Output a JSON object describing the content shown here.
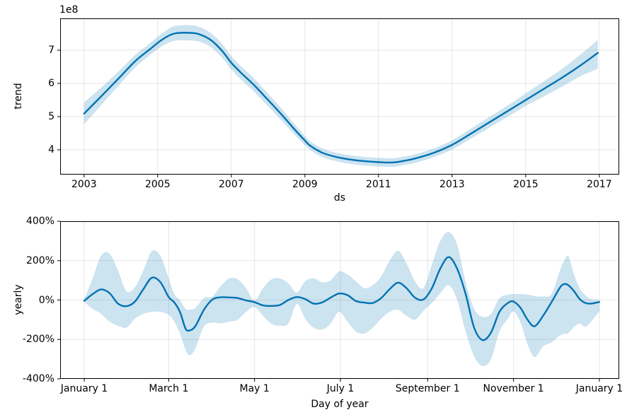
{
  "figure": {
    "background": "#ffffff",
    "line_color": "#0072b2",
    "band_color": "#0072b2",
    "band_alpha": 0.2,
    "grid_color": "#808080",
    "grid_alpha": 0.2,
    "spine_color": "#000000",
    "text_color": "#000000"
  },
  "chart_data": [
    {
      "type": "line",
      "title": "",
      "xlabel": "ds",
      "ylabel": "trend",
      "y_offset_label": "1e8",
      "grid": true,
      "legend": "none",
      "xlim": [
        2002.35,
        2017.54
      ],
      "ylim": [
        3.255,
        7.957
      ],
      "y_unit": "1e8",
      "x_ticks": [
        {
          "v": 2003,
          "label": "2003"
        },
        {
          "v": 2005,
          "label": "2005"
        },
        {
          "v": 2007,
          "label": "2007"
        },
        {
          "v": 2009,
          "label": "2009"
        },
        {
          "v": 2011,
          "label": "2011"
        },
        {
          "v": 2013,
          "label": "2013"
        },
        {
          "v": 2015,
          "label": "2015"
        },
        {
          "v": 2017,
          "label": "2017"
        }
      ],
      "y_ticks": [
        {
          "v": 4,
          "label": "4"
        },
        {
          "v": 5,
          "label": "5"
        },
        {
          "v": 6,
          "label": "6"
        },
        {
          "v": 7,
          "label": "7"
        }
      ],
      "series": [
        {
          "name": "trend",
          "x": [
            2003.0,
            2003.5,
            2004.0,
            2004.4,
            2004.78,
            2005.1,
            2005.45,
            2005.9,
            2006.15,
            2006.45,
            2006.75,
            2007.0,
            2007.3,
            2007.6,
            2008.0,
            2008.4,
            2008.7,
            2009.0,
            2009.15,
            2009.5,
            2010.0,
            2010.5,
            2011.0,
            2011.4,
            2011.75,
            2012.0,
            2012.5,
            2013.0,
            2013.5,
            2014.0,
            2014.5,
            2015.0,
            2015.5,
            2016.0,
            2016.5,
            2016.96
          ],
          "y": [
            5.09,
            5.65,
            6.22,
            6.68,
            7.02,
            7.3,
            7.5,
            7.52,
            7.47,
            7.3,
            6.98,
            6.62,
            6.28,
            5.97,
            5.5,
            5.02,
            4.64,
            4.28,
            4.12,
            3.9,
            3.75,
            3.67,
            3.63,
            3.62,
            3.68,
            3.74,
            3.91,
            4.15,
            4.48,
            4.82,
            5.16,
            5.5,
            5.84,
            6.18,
            6.55,
            6.92
          ],
          "lower": [
            4.77,
            5.39,
            6.01,
            6.49,
            6.84,
            7.11,
            7.28,
            7.29,
            7.25,
            7.09,
            6.77,
            6.42,
            6.08,
            5.77,
            5.31,
            4.84,
            4.48,
            4.14,
            3.99,
            3.77,
            3.62,
            3.54,
            3.5,
            3.49,
            3.55,
            3.61,
            3.78,
            4.01,
            4.33,
            4.66,
            4.99,
            5.32,
            5.61,
            5.91,
            6.22,
            6.44
          ],
          "upper": [
            5.43,
            5.91,
            6.43,
            6.87,
            7.2,
            7.49,
            7.72,
            7.75,
            7.69,
            7.51,
            7.19,
            6.82,
            6.48,
            6.17,
            5.69,
            5.2,
            4.8,
            4.42,
            4.25,
            4.03,
            3.88,
            3.8,
            3.76,
            3.75,
            3.81,
            3.87,
            4.04,
            4.29,
            4.63,
            4.98,
            5.33,
            5.7,
            6.07,
            6.45,
            6.88,
            7.31
          ]
        }
      ]
    },
    {
      "type": "line",
      "title": "",
      "xlabel": "Day of year",
      "ylabel": "yearly",
      "grid": true,
      "legend": "none",
      "xlim": [
        -17.1,
        380.1
      ],
      "ylim": [
        -400,
        400
      ],
      "y_unit": "%",
      "x_ticks": [
        {
          "v": 0,
          "label": "January 1"
        },
        {
          "v": 60,
          "label": "March 1"
        },
        {
          "v": 121,
          "label": "May 1"
        },
        {
          "v": 182,
          "label": "July 1"
        },
        {
          "v": 244,
          "label": "September 1"
        },
        {
          "v": 305,
          "label": "November 1"
        },
        {
          "v": 366,
          "label": "January 1"
        }
      ],
      "y_ticks": [
        {
          "v": 400,
          "label": "400%"
        },
        {
          "v": 200,
          "label": "200%"
        },
        {
          "v": 0,
          "label": "0%"
        },
        {
          "v": -200,
          "label": "-200%"
        },
        {
          "v": -400,
          "label": "-400%"
        }
      ],
      "series": [
        {
          "name": "yearly",
          "x": [
            0,
            6,
            12,
            18,
            24,
            30,
            36,
            42,
            48,
            54,
            60,
            64,
            68,
            72,
            75,
            79,
            85,
            91,
            97,
            103,
            109,
            115,
            121,
            127,
            133,
            139,
            145,
            151,
            157,
            163,
            169,
            175,
            181,
            187,
            193,
            199,
            205,
            211,
            217,
            223,
            229,
            235,
            241,
            247,
            253,
            259,
            265,
            271,
            277,
            283,
            289,
            295,
            301,
            305,
            310,
            315,
            320,
            326,
            332,
            338,
            341,
            344,
            348,
            352,
            356,
            360,
            366
          ],
          "y": [
            -4,
            30,
            54,
            35,
            -18,
            -31,
            -8,
            55,
            113,
            92,
            15,
            -12,
            -60,
            -145,
            -154,
            -132,
            -50,
            2,
            14,
            13,
            10,
            -2,
            -11,
            -27,
            -30,
            -25,
            0,
            15,
            5,
            -18,
            -12,
            12,
            33,
            25,
            -5,
            -13,
            -15,
            10,
            55,
            88,
            60,
            12,
            3,
            60,
            160,
            218,
            158,
            30,
            -140,
            -203,
            -165,
            -60,
            -15,
            -8,
            -40,
            -100,
            -133,
            -80,
            -11,
            63,
            81,
            75,
            45,
            5,
            -15,
            -18,
            -10
          ],
          "lower": [
            -10,
            -45,
            -70,
            -110,
            -130,
            -140,
            -95,
            -70,
            -60,
            -60,
            -75,
            -110,
            -170,
            -252,
            -280,
            -245,
            -135,
            -115,
            -118,
            -110,
            -100,
            -60,
            -36,
            -80,
            -120,
            -130,
            -120,
            -20,
            -95,
            -140,
            -150,
            -120,
            -60,
            -110,
            -160,
            -170,
            -140,
            -95,
            -60,
            -50,
            -80,
            -100,
            -55,
            -15,
            35,
            75,
            0,
            -160,
            -285,
            -335,
            -300,
            -160,
            -95,
            -58,
            -115,
            -225,
            -290,
            -235,
            -215,
            -180,
            -172,
            -168,
            -135,
            -120,
            -135,
            -110,
            -56
          ],
          "upper": [
            2,
            110,
            225,
            235,
            150,
            45,
            65,
            150,
            248,
            225,
            110,
            30,
            0,
            -45,
            -48,
            -40,
            10,
            18,
            70,
            110,
            105,
            60,
            -2,
            60,
            105,
            110,
            85,
            38,
            95,
            110,
            90,
            100,
            145,
            130,
            95,
            60,
            75,
            120,
            200,
            250,
            185,
            95,
            60,
            180,
            300,
            345,
            280,
            90,
            -45,
            -85,
            -70,
            10,
            27,
            30,
            30,
            28,
            20,
            18,
            30,
            150,
            200,
            222,
            130,
            60,
            25,
            5,
            0
          ]
        }
      ]
    }
  ]
}
